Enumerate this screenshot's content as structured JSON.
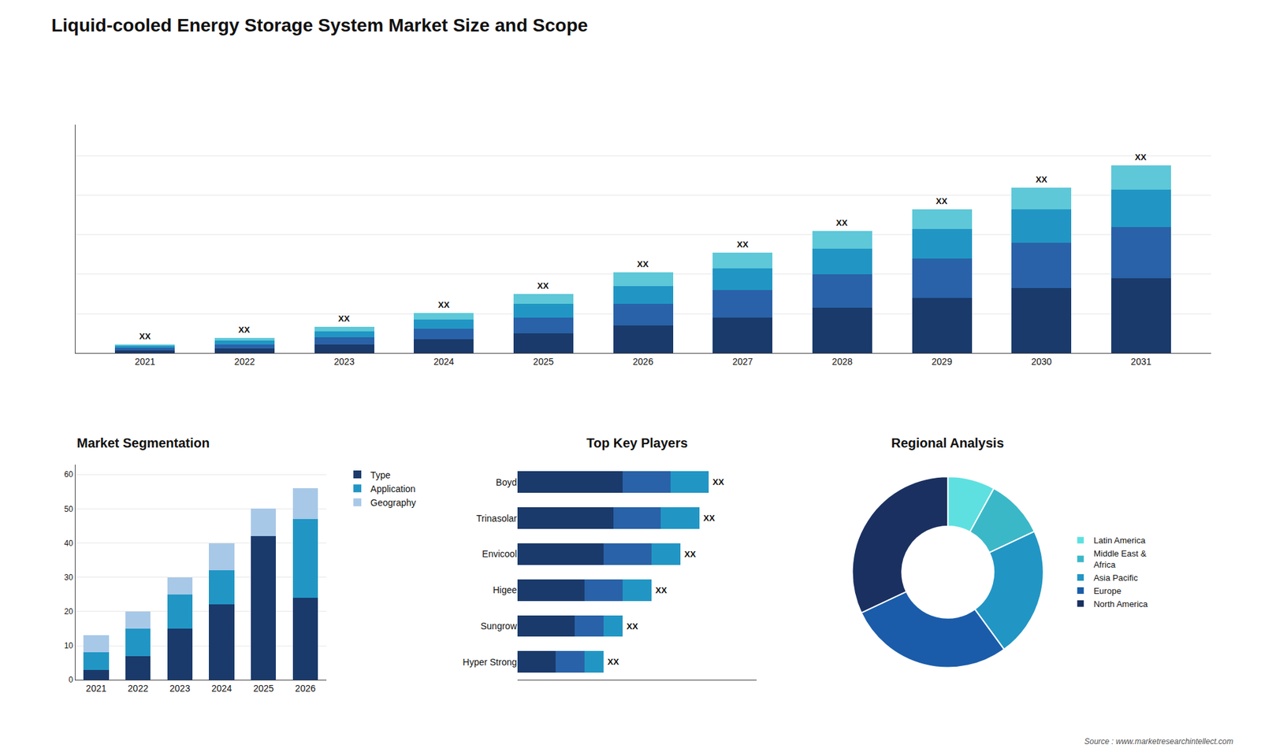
{
  "chart_data": [
    {
      "type": "bar",
      "stacked": true,
      "title": "Liquid-cooled Energy Storage System Market Size and Scope",
      "x": [
        2021,
        2022,
        2023,
        2024,
        2025,
        2026,
        2027,
        2028,
        2029,
        2030,
        2031
      ],
      "series": [
        {
          "color": "#1a3a6b",
          "values": [
            1.5,
            2.5,
            4.5,
            7,
            10,
            14,
            18,
            23,
            28,
            33,
            38
          ]
        },
        {
          "color": "#2962a8",
          "values": [
            1.2,
            2.0,
            3.5,
            5.5,
            8,
            11,
            14,
            17,
            20,
            23,
            26
          ]
        },
        {
          "color": "#2196c4",
          "values": [
            1.0,
            1.8,
            3.0,
            4.5,
            7,
            9,
            11,
            13,
            15,
            17,
            19
          ]
        },
        {
          "color": "#5ec8d8",
          "values": [
            0.8,
            1.5,
            2.5,
            3.5,
            5,
            7,
            8,
            9,
            10,
            11,
            12
          ]
        }
      ],
      "xlim": [
        2020.3,
        2031.7
      ],
      "xticks": [
        2021,
        2022,
        2023,
        2024,
        2025,
        2026,
        2027,
        2028,
        2029,
        2030,
        2031
      ],
      "ylim": [
        0,
        115.9
      ],
      "yticks": [
        0,
        20,
        40,
        60,
        80,
        100
      ],
      "grid": true,
      "tick_labels": "x",
      "annotations": [
        {
          "x": 2021,
          "text": "XX"
        },
        {
          "x": 2022,
          "text": "XX"
        },
        {
          "x": 2023,
          "text": "XX"
        },
        {
          "x": 2024,
          "text": "XX"
        },
        {
          "x": 2025,
          "text": "XX"
        },
        {
          "x": 2026,
          "text": "XX"
        },
        {
          "x": 2027,
          "text": "XX"
        },
        {
          "x": 2028,
          "text": "XX"
        },
        {
          "x": 2029,
          "text": "XX"
        },
        {
          "x": 2030,
          "text": "XX"
        },
        {
          "x": 2031,
          "text": "XX"
        },
        {
          "text": "Source : www.marketresearchintellect.com"
        }
      ]
    },
    {
      "type": "bar",
      "stacked": true,
      "title": "Market Segmentation",
      "x": [
        2021,
        2022,
        2023,
        2024,
        2025,
        2026
      ],
      "series": [
        {
          "name": "Type",
          "color": "#1a3a6b",
          "values": [
            3,
            7,
            15,
            22,
            42,
            24
          ]
        },
        {
          "name": "Application",
          "color": "#2196c4",
          "values": [
            5,
            8,
            10,
            10,
            0,
            23
          ]
        },
        {
          "name": "Geography",
          "color": "#a8c8e8",
          "values": [
            5,
            5,
            5,
            8,
            8,
            9
          ]
        }
      ],
      "xlim": [
        2020.5,
        2026.5
      ],
      "xticks": [
        2021,
        2022,
        2023,
        2024,
        2025,
        2026
      ],
      "ylim": [
        0,
        63
      ],
      "yticks": [
        0,
        10,
        20,
        30,
        40,
        50,
        60
      ],
      "grid": true,
      "legend": "right"
    },
    {
      "type": "bar",
      "stacked": true,
      "orientation": "horizontal",
      "title": "Top Key Players",
      "categories": [
        "Boyd",
        "Trinasolar",
        "Envicool",
        "Higee",
        "Sungrow",
        "Hyper Strong"
      ],
      "series": [
        {
          "color": "#1a3a6b",
          "values": [
            5.5,
            5.0,
            4.5,
            3.5,
            3.0,
            2.0
          ]
        },
        {
          "color": "#2962a8",
          "values": [
            2.5,
            2.5,
            2.5,
            2.0,
            1.5,
            1.5
          ]
        },
        {
          "color": "#2196c4",
          "values": [
            2.0,
            2.0,
            1.5,
            1.5,
            1.0,
            1.0
          ]
        }
      ],
      "xlim": [
        0,
        12.5
      ],
      "grid": false,
      "tick_labels": "y",
      "annotations": [
        {
          "y": "Boyd",
          "text": "XX"
        },
        {
          "y": "Trinasolar",
          "text": "XX"
        },
        {
          "y": "Envicool",
          "text": "XX"
        },
        {
          "y": "Higee",
          "text": "XX"
        },
        {
          "y": "Sungrow",
          "text": "XX"
        },
        {
          "y": "Hyper Strong",
          "text": "XX"
        }
      ]
    },
    {
      "type": "pie",
      "title": "Regional Analysis",
      "categories": [
        "Latin America",
        "Middle East &\nAfrica",
        "Asia Pacific",
        "Europe",
        "North America"
      ],
      "values": [
        8,
        10,
        22,
        28,
        32
      ],
      "colors": [
        "#5ee0e0",
        "#3bb8c8",
        "#2196c4",
        "#1a5caa",
        "#1a3060"
      ],
      "legend": "right"
    }
  ]
}
